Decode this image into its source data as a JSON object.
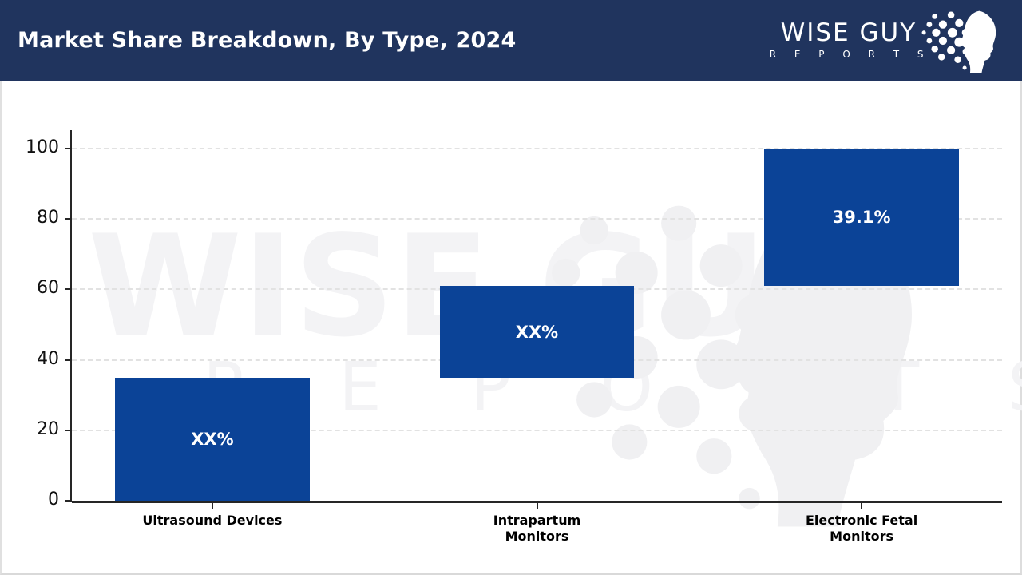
{
  "header": {
    "title": "Market Share Breakdown, By Type, 2024",
    "logo": {
      "line1": "WISE GUY",
      "line2": "R E P O R T S"
    }
  },
  "watermark": {
    "line1": "WISE GUY",
    "line2": "R E P O R T S"
  },
  "colors": {
    "header_bg": "#20345e",
    "bar_fill": "#0b4397",
    "bar_label_text": "#ffffff",
    "axis": "#262626",
    "tick_label": "#111111",
    "gridline": "#e2e2e2",
    "watermark": "#f3f3f5",
    "title_text": "#ffffff"
  },
  "chart_data": {
    "type": "bar",
    "subtype": "waterfall",
    "title": "Market Share Breakdown, By Type, 2024",
    "categories": [
      "Ultrasound Devices",
      "Intrapartum\nMonitors",
      "Electronic Fetal\nMonitors"
    ],
    "values": [
      35.0,
      25.9,
      39.1
    ],
    "segments": [
      {
        "start": 0,
        "end": 35,
        "label": "XX%"
      },
      {
        "start": 35,
        "end": 60.9,
        "label": "XX%"
      },
      {
        "start": 60.9,
        "end": 100,
        "label": "39.1%"
      }
    ],
    "xlabel": "",
    "ylabel": "",
    "ylim": [
      0,
      100
    ],
    "yticks": [
      0,
      20,
      40,
      60,
      80,
      100
    ],
    "grid": "horizontal-dashed",
    "legend": "none",
    "bar_centers_frac": [
      0.151,
      0.5,
      0.849
    ],
    "bar_width_frac": 0.209
  }
}
